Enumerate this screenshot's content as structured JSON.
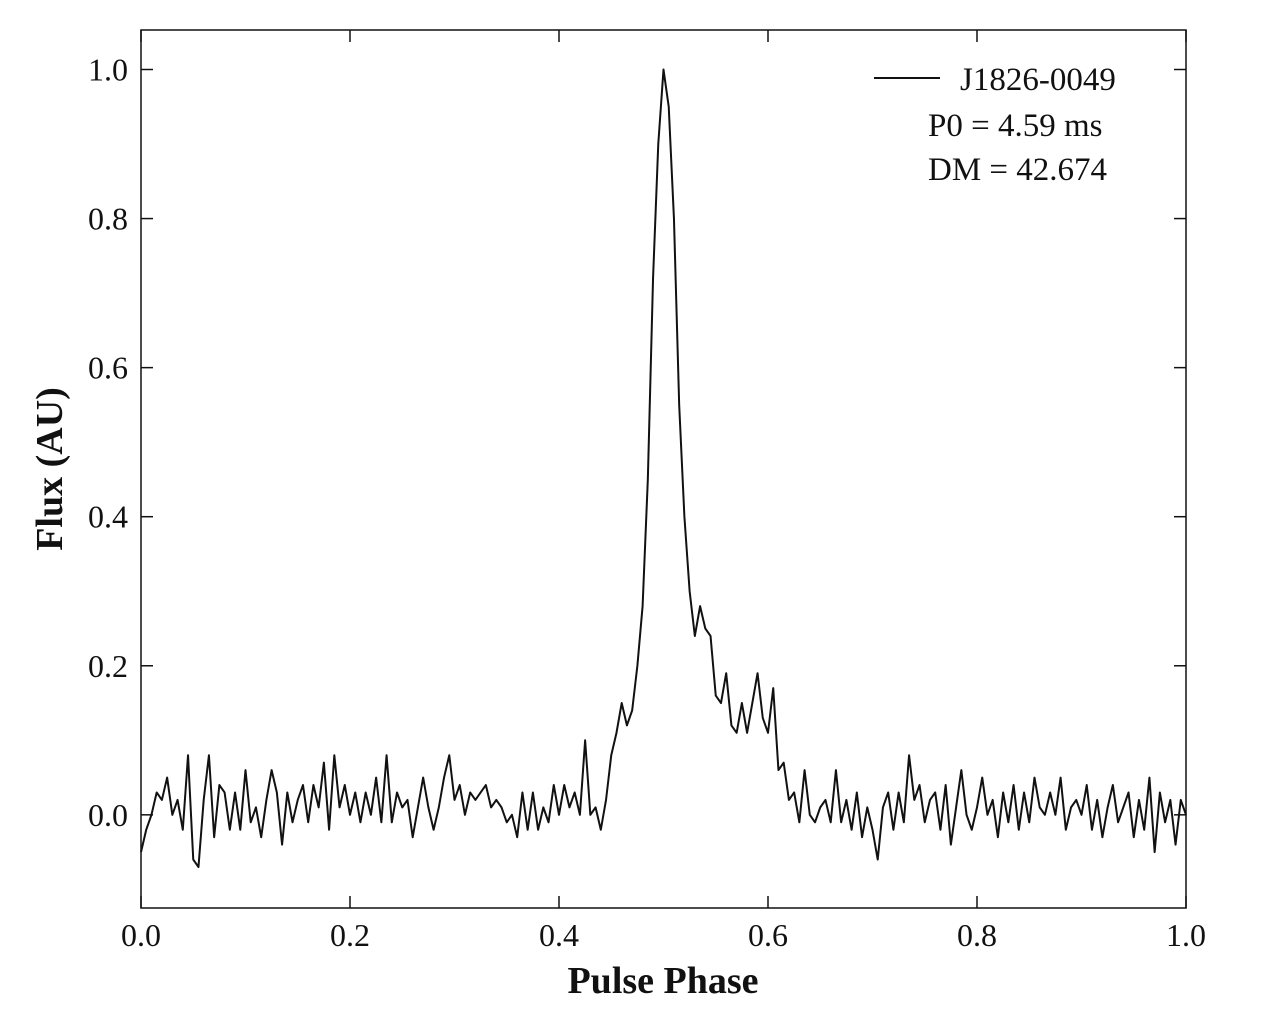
{
  "chart_data": {
    "type": "line",
    "xlabel": "Pulse Phase",
    "ylabel": "Flux (AU)",
    "annotations": [
      "P0 = 4.59 ms",
      "DM = 42.674"
    ],
    "legend": "upper right",
    "xlim": [
      0,
      1
    ],
    "ylim": [
      -0.125,
      1.053
    ],
    "xticks": [
      {
        "value": 0,
        "label": "0.0"
      },
      0.2,
      0.4,
      0.6,
      0.8,
      {
        "value": 1,
        "label": "1.0"
      }
    ],
    "yticks": [
      {
        "value": 0,
        "label": "0.0"
      },
      0.2,
      0.4,
      0.6,
      0.8,
      {
        "value": 1,
        "label": "1.0"
      }
    ],
    "x": [
      0,
      0.005,
      0.01,
      0.015,
      0.02,
      0.025,
      0.03,
      0.035,
      0.04,
      0.045,
      0.05,
      0.055,
      0.06,
      0.065,
      0.07,
      0.075,
      0.08,
      0.085,
      0.09,
      0.095,
      0.1,
      0.105,
      0.11,
      0.115,
      0.12,
      0.125,
      0.13,
      0.135,
      0.14,
      0.145,
      0.15,
      0.155,
      0.16,
      0.165,
      0.17,
      0.175,
      0.18,
      0.185,
      0.19,
      0.195,
      0.2,
      0.205,
      0.21,
      0.215,
      0.22,
      0.225,
      0.23,
      0.235,
      0.24,
      0.245,
      0.25,
      0.255,
      0.26,
      0.265,
      0.27,
      0.275,
      0.28,
      0.285,
      0.29,
      0.295,
      0.3,
      0.305,
      0.31,
      0.315,
      0.32,
      0.325,
      0.33,
      0.335,
      0.34,
      0.345,
      0.35,
      0.355,
      0.36,
      0.365,
      0.37,
      0.375,
      0.38,
      0.385,
      0.39,
      0.395,
      0.4,
      0.405,
      0.41,
      0.415,
      0.42,
      0.425,
      0.43,
      0.435,
      0.44,
      0.445,
      0.45,
      0.455,
      0.46,
      0.465,
      0.47,
      0.475,
      0.48,
      0.485,
      0.49,
      0.495,
      0.5,
      0.505,
      0.51,
      0.515,
      0.52,
      0.525,
      0.53,
      0.535,
      0.54,
      0.545,
      0.55,
      0.555,
      0.56,
      0.565,
      0.57,
      0.575,
      0.58,
      0.585,
      0.59,
      0.595,
      0.6,
      0.605,
      0.61,
      0.615,
      0.62,
      0.625,
      0.63,
      0.635,
      0.64,
      0.645,
      0.65,
      0.655,
      0.66,
      0.665,
      0.67,
      0.675,
      0.68,
      0.685,
      0.69,
      0.695,
      0.7,
      0.705,
      0.71,
      0.715,
      0.72,
      0.725,
      0.73,
      0.735,
      0.74,
      0.745,
      0.75,
      0.755,
      0.76,
      0.765,
      0.77,
      0.775,
      0.78,
      0.785,
      0.79,
      0.795,
      0.8,
      0.805,
      0.81,
      0.815,
      0.82,
      0.825,
      0.83,
      0.835,
      0.84,
      0.845,
      0.85,
      0.855,
      0.86,
      0.865,
      0.87,
      0.875,
      0.88,
      0.885,
      0.89,
      0.895,
      0.9,
      0.905,
      0.91,
      0.915,
      0.92,
      0.925,
      0.93,
      0.935,
      0.94,
      0.945,
      0.95,
      0.955,
      0.96,
      0.965,
      0.97,
      0.975,
      0.98,
      0.985,
      0.99,
      0.995,
      1
    ],
    "series": [
      {
        "name": "J1826-0049",
        "color": "#111111",
        "values": [
          -0.05,
          -0.02,
          0,
          0.03,
          0.02,
          0.05,
          0,
          0.02,
          -0.02,
          0.08,
          -0.06,
          -0.07,
          0.02,
          0.08,
          -0.03,
          0.04,
          0.03,
          -0.02,
          0.03,
          -0.02,
          0.06,
          -0.01,
          0.01,
          -0.03,
          0.02,
          0.06,
          0.03,
          -0.04,
          0.03,
          -0.01,
          0.02,
          0.04,
          -0.01,
          0.04,
          0.01,
          0.07,
          -0.02,
          0.08,
          0.01,
          0.04,
          0,
          0.03,
          -0.01,
          0.03,
          0,
          0.05,
          -0.01,
          0.08,
          -0.01,
          0.03,
          0.01,
          0.02,
          -0.03,
          0.01,
          0.05,
          0.01,
          -0.02,
          0.01,
          0.05,
          0.08,
          0.02,
          0.04,
          0,
          0.03,
          0.02,
          0.03,
          0.04,
          0.01,
          0.02,
          0.01,
          -0.01,
          0,
          -0.03,
          0.03,
          -0.02,
          0.03,
          -0.02,
          0.01,
          -0.01,
          0.04,
          0,
          0.04,
          0.01,
          0.03,
          0,
          0.1,
          0,
          0.01,
          -0.02,
          0.02,
          0.08,
          0.11,
          0.15,
          0.12,
          0.14,
          0.2,
          0.28,
          0.45,
          0.72,
          0.9,
          1,
          0.95,
          0.8,
          0.55,
          0.4,
          0.3,
          0.24,
          0.28,
          0.25,
          0.24,
          0.16,
          0.15,
          0.19,
          0.12,
          0.11,
          0.15,
          0.11,
          0.15,
          0.19,
          0.13,
          0.11,
          0.17,
          0.06,
          0.07,
          0.02,
          0.03,
          -0.01,
          0.06,
          0,
          -0.01,
          0.01,
          0.02,
          -0.01,
          0.06,
          -0.01,
          0.02,
          -0.02,
          0.03,
          -0.03,
          0.01,
          -0.02,
          -0.06,
          0.01,
          0.03,
          -0.02,
          0.03,
          -0.01,
          0.08,
          0.02,
          0.04,
          -0.01,
          0.02,
          0.03,
          -0.02,
          0.04,
          -0.04,
          0.01,
          0.06,
          0,
          -0.02,
          0.01,
          0.05,
          0,
          0.02,
          -0.03,
          0.03,
          -0.01,
          0.04,
          -0.02,
          0.03,
          -0.01,
          0.05,
          0.01,
          0,
          0.03,
          0,
          0.05,
          -0.02,
          0.01,
          0.02,
          0,
          0.04,
          -0.02,
          0.02,
          -0.03,
          0.01,
          0.04,
          -0.01,
          0.01,
          0.03,
          -0.03,
          0.02,
          -0.02,
          0.05,
          -0.05,
          0.03,
          -0.01,
          0.02,
          -0.04,
          0.02,
          0
        ]
      }
    ]
  }
}
